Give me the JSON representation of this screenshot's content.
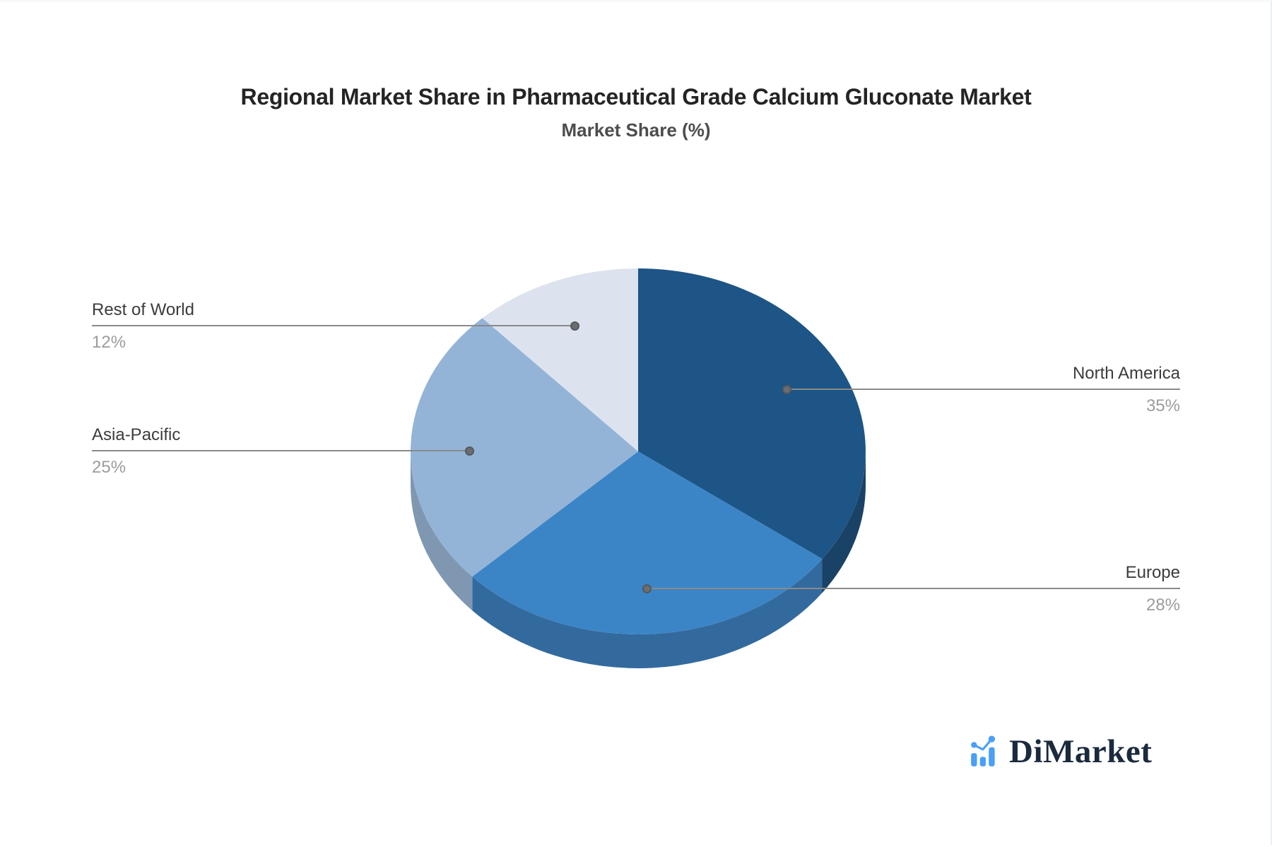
{
  "header": {
    "title": "Regional Market Share in Pharmaceutical Grade Calcium Gluconate Market",
    "subtitle": "Market Share (%)"
  },
  "chart_data": {
    "type": "pie",
    "style": "3d",
    "title": "Regional Market Share in Pharmaceutical Grade Calcium Gluconate Market",
    "subtitle": "Market Share (%)",
    "unit": "%",
    "labels": [
      "North America",
      "Europe",
      "Asia-Pacific",
      "Rest of World"
    ],
    "values": [
      35,
      28,
      25,
      12
    ],
    "value_labels": [
      "35%",
      "28%",
      "25%",
      "12%"
    ],
    "colors": [
      "#1D5586",
      "#3B85C7",
      "#93B4D7",
      "#DCE3EE"
    ],
    "side_colors": [
      "#1A4266",
      "#336A9E",
      "#7F97B1",
      "#C2CBD9"
    ],
    "start_angle_deg": 0,
    "clockwise": true,
    "legend_position": "callout-labels",
    "leader_line_color": "#8A8A8A",
    "label_color": "#3C3C3C",
    "value_color": "#9C9C9C"
  },
  "logo": {
    "text": "DiMarket",
    "icon": "bar-chart-trend-icon",
    "icon_color": "#4A9FF7",
    "text_color": "#1B2A3E"
  }
}
